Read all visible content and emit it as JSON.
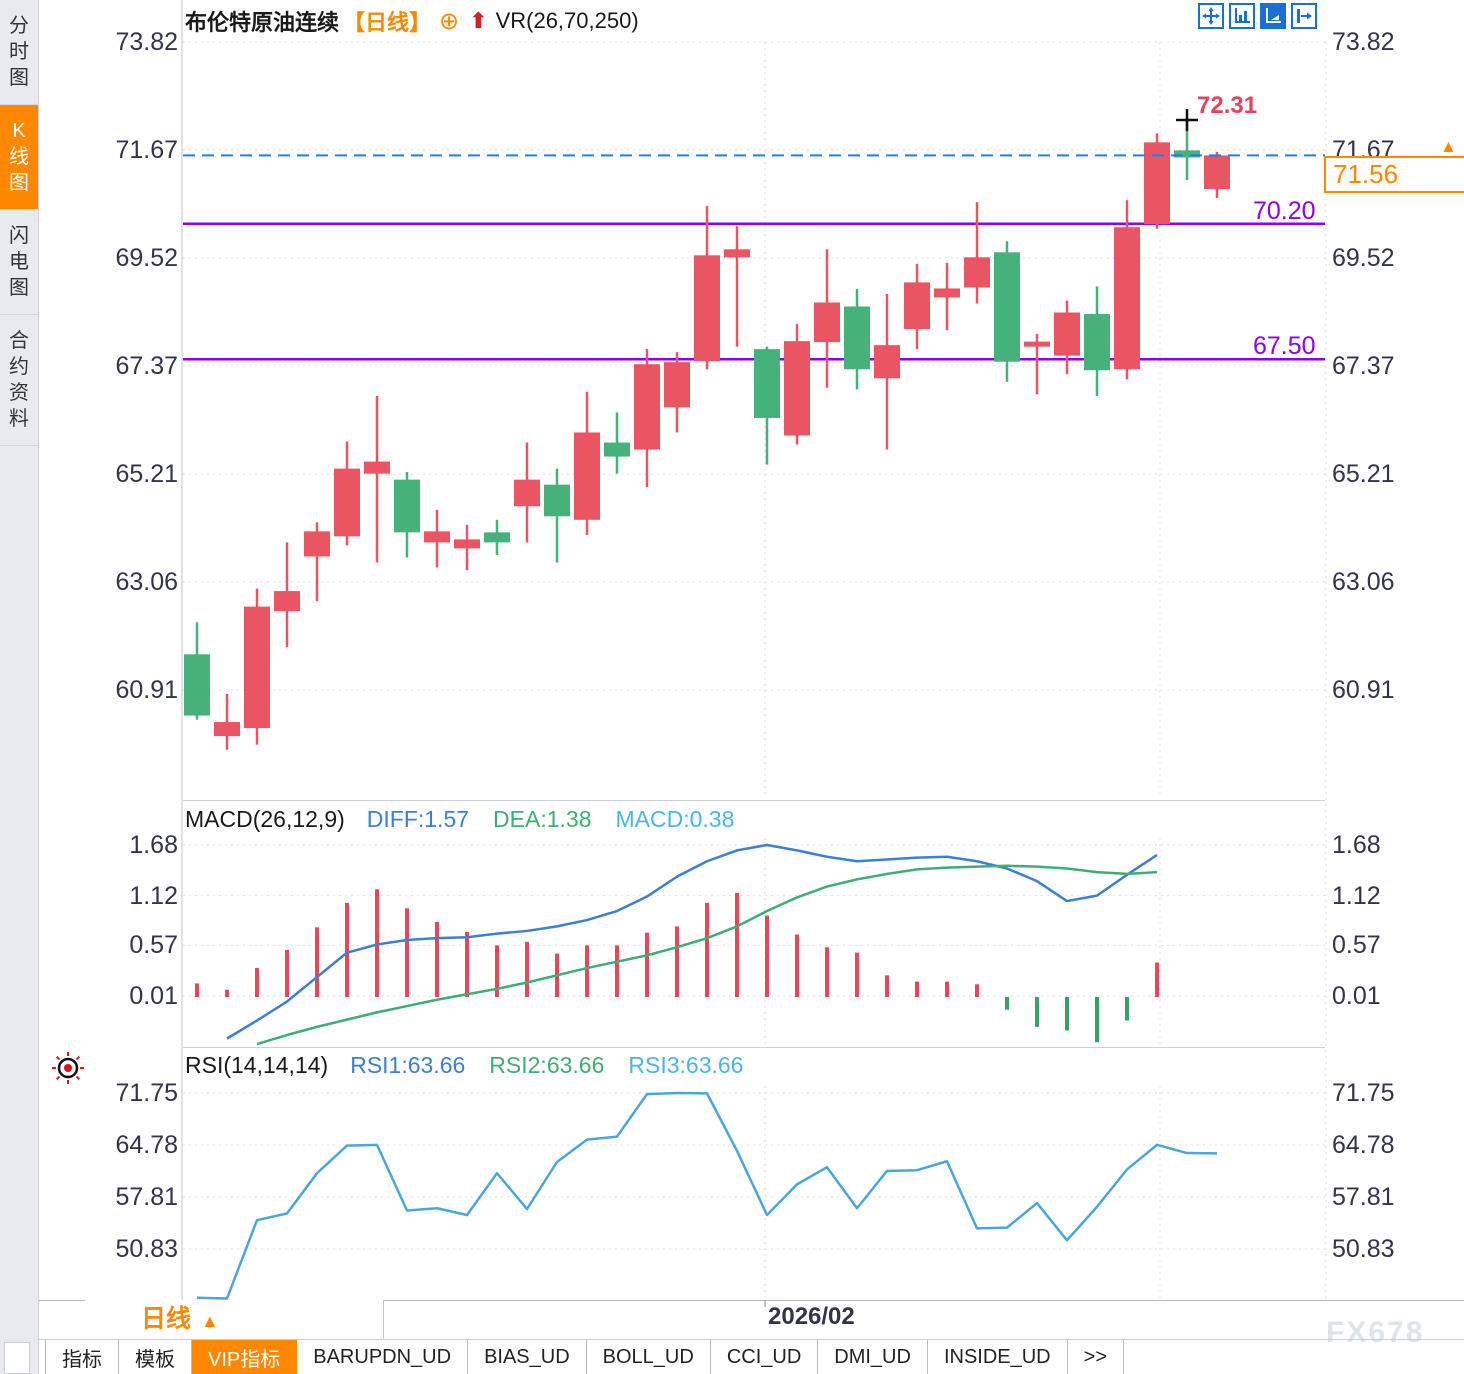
{
  "header": {
    "title": "布伦特原油连续",
    "period_tag": "【日线】",
    "vr_indicator": "VR(26,70,250)"
  },
  "icons": {
    "plus_circle": "⊕",
    "up_arrow": "⬆",
    "dropdown": "▲",
    "axis_marker": "▲"
  },
  "sidebar": {
    "items": [
      {
        "label": "分时图",
        "active": false
      },
      {
        "label": "K线图",
        "active": true
      },
      {
        "label": "闪电图",
        "active": false
      },
      {
        "label": "合约资料",
        "active": false
      }
    ]
  },
  "levels": {
    "resistance": "70.20",
    "support": "67.50",
    "last_price": "71.56",
    "high_label": "72.31"
  },
  "macd_panel": {
    "title": "MACD(26,12,9)",
    "diff_label": "DIFF:1.57",
    "dea_label": "DEA:1.38",
    "macd_label": "MACD:0.38"
  },
  "rsi_panel": {
    "title": "RSI(14,14,14)",
    "rsi1_label": "RSI1:63.66",
    "rsi2_label": "RSI2:63.66",
    "rsi3_label": "RSI3:63.66"
  },
  "xaxis": {
    "date_label": "2026/02"
  },
  "bottom": {
    "period_label": "日线",
    "tabs": [
      {
        "label": "指标",
        "active": false
      },
      {
        "label": "模板",
        "active": false
      },
      {
        "label": "VIP指标",
        "active": true
      },
      {
        "label": "BARUPDN_UD",
        "active": false
      },
      {
        "label": "BIAS_UD",
        "active": false
      },
      {
        "label": "BOLL_UD",
        "active": false
      },
      {
        "label": "CCI_UD",
        "active": false
      },
      {
        "label": "DMI_UD",
        "active": false
      },
      {
        "label": "INSIDE_UD",
        "active": false
      },
      {
        "label": ">>",
        "active": false
      }
    ],
    "watermark": "FX678"
  },
  "colors": {
    "up": "#ea5564",
    "down": "#47b17c",
    "level_line": "#8b00ff",
    "current_price_line": "#1e7ff0",
    "accent": "#ff8800",
    "diff_line": "#3b7fd9",
    "dea_line": "#3fae75",
    "hist_up": "#e8475a",
    "hist_down": "#35a368",
    "rsi_line": "#4ba6dc",
    "grid": "#dcdee5",
    "axis_text": "#33334a"
  },
  "chart_data": [
    {
      "type": "candlestick",
      "title": "布伦特原油连续 日线",
      "yticks": [
        "73.82",
        "71.67",
        "69.52",
        "67.37",
        "65.21",
        "63.06",
        "60.91"
      ],
      "ylim": [
        59.5,
        74.2
      ],
      "levels": [
        {
          "value": 70.2,
          "label": "70.20"
        },
        {
          "value": 67.5,
          "label": "67.50"
        }
      ],
      "current_price": 71.56,
      "annotated_high": 72.31,
      "x_date_label": "2026/02",
      "candles": [
        {
          "o": 61.62,
          "h": 62.26,
          "l": 60.32,
          "c": 60.4
        },
        {
          "o": 59.99,
          "h": 60.83,
          "l": 59.72,
          "c": 60.27
        },
        {
          "o": 60.15,
          "h": 62.93,
          "l": 59.82,
          "c": 62.57
        },
        {
          "o": 62.48,
          "h": 63.85,
          "l": 61.76,
          "c": 62.88
        },
        {
          "o": 63.57,
          "h": 64.25,
          "l": 62.68,
          "c": 64.07
        },
        {
          "o": 63.97,
          "h": 65.86,
          "l": 63.79,
          "c": 65.32
        },
        {
          "o": 65.22,
          "h": 66.77,
          "l": 63.45,
          "c": 65.46
        },
        {
          "o": 65.1,
          "h": 65.25,
          "l": 63.55,
          "c": 64.05
        },
        {
          "o": 63.85,
          "h": 64.5,
          "l": 63.35,
          "c": 64.07
        },
        {
          "o": 63.73,
          "h": 64.2,
          "l": 63.3,
          "c": 63.91
        },
        {
          "o": 64.05,
          "h": 64.3,
          "l": 63.6,
          "c": 63.85
        },
        {
          "o": 64.57,
          "h": 65.84,
          "l": 63.85,
          "c": 65.1
        },
        {
          "o": 65.0,
          "h": 65.32,
          "l": 63.45,
          "c": 64.37
        },
        {
          "o": 64.3,
          "h": 66.85,
          "l": 64.0,
          "c": 66.04
        },
        {
          "o": 65.84,
          "h": 66.44,
          "l": 65.22,
          "c": 65.56
        },
        {
          "o": 65.7,
          "h": 67.7,
          "l": 64.95,
          "c": 67.4
        },
        {
          "o": 66.54,
          "h": 67.64,
          "l": 66.04,
          "c": 67.44
        },
        {
          "o": 67.46,
          "h": 70.55,
          "l": 67.3,
          "c": 69.57
        },
        {
          "o": 69.53,
          "h": 70.15,
          "l": 67.75,
          "c": 69.69
        },
        {
          "o": 67.7,
          "h": 67.75,
          "l": 65.4,
          "c": 66.33
        },
        {
          "o": 65.98,
          "h": 68.2,
          "l": 65.8,
          "c": 67.86
        },
        {
          "o": 67.84,
          "h": 69.69,
          "l": 66.93,
          "c": 68.63
        },
        {
          "o": 68.55,
          "h": 68.9,
          "l": 66.9,
          "c": 67.3
        },
        {
          "o": 67.12,
          "h": 68.8,
          "l": 65.7,
          "c": 67.78
        },
        {
          "o": 68.1,
          "h": 69.4,
          "l": 67.7,
          "c": 69.03
        },
        {
          "o": 68.73,
          "h": 69.42,
          "l": 68.08,
          "c": 68.91
        },
        {
          "o": 68.93,
          "h": 70.63,
          "l": 68.61,
          "c": 69.53
        },
        {
          "o": 69.63,
          "h": 69.85,
          "l": 67.05,
          "c": 67.45
        },
        {
          "o": 67.75,
          "h": 68.0,
          "l": 66.8,
          "c": 67.85
        },
        {
          "o": 67.57,
          "h": 68.67,
          "l": 67.2,
          "c": 68.43
        },
        {
          "o": 68.4,
          "h": 68.95,
          "l": 66.77,
          "c": 67.28
        },
        {
          "o": 67.3,
          "h": 70.67,
          "l": 67.1,
          "c": 70.13
        },
        {
          "o": 70.19,
          "h": 72.0,
          "l": 70.1,
          "c": 71.82
        },
        {
          "o": 71.66,
          "h": 72.31,
          "l": 71.07,
          "c": 71.52
        },
        {
          "o": 70.89,
          "h": 71.63,
          "l": 70.71,
          "c": 71.56
        }
      ]
    },
    {
      "type": "bar+line",
      "name": "MACD",
      "yticks": [
        "1.68",
        "1.12",
        "0.57",
        "0.01"
      ],
      "series": [
        {
          "name": "DIFF",
          "last": 1.57,
          "values": [
            null,
            -0.46,
            -0.26,
            -0.05,
            0.22,
            0.49,
            0.58,
            0.63,
            0.65,
            0.66,
            0.7,
            0.73,
            0.78,
            0.85,
            0.95,
            1.11,
            1.33,
            1.5,
            1.62,
            1.68,
            1.62,
            1.55,
            1.5,
            1.52,
            1.54,
            1.55,
            1.5,
            1.42,
            1.28,
            1.06,
            1.12,
            1.35,
            1.57,
            null,
            null
          ]
        },
        {
          "name": "DEA",
          "last": 1.38,
          "values": [
            null,
            null,
            -0.52,
            -0.42,
            -0.33,
            -0.25,
            -0.17,
            -0.1,
            -0.03,
            0.03,
            0.09,
            0.16,
            0.24,
            0.32,
            0.39,
            0.46,
            0.55,
            0.65,
            0.78,
            0.95,
            1.1,
            1.22,
            1.3,
            1.36,
            1.41,
            1.43,
            1.44,
            1.45,
            1.44,
            1.42,
            1.38,
            1.36,
            1.38,
            null,
            null
          ]
        },
        {
          "name": "MACD_hist",
          "last": 0.38,
          "values": [
            0.15,
            0.08,
            0.32,
            0.52,
            0.77,
            1.04,
            1.19,
            0.98,
            0.83,
            0.72,
            0.57,
            0.61,
            0.48,
            0.57,
            0.57,
            0.71,
            0.78,
            1.04,
            1.15,
            0.9,
            0.69,
            0.55,
            0.49,
            0.24,
            0.17,
            0.17,
            0.14,
            -0.14,
            -0.33,
            -0.37,
            -0.5,
            -0.26,
            0.38,
            null,
            null
          ]
        }
      ]
    },
    {
      "type": "line",
      "name": "RSI",
      "yticks": [
        "71.75",
        "64.78",
        "57.81",
        "50.83"
      ],
      "series": [
        {
          "name": "RSI1",
          "last": 63.66,
          "values": [
            44.3,
            44.2,
            54.7,
            55.6,
            61.0,
            64.7,
            64.8,
            56.0,
            56.3,
            55.4,
            61.0,
            56.2,
            62.5,
            65.5,
            65.9,
            71.6,
            71.75,
            71.7,
            64.0,
            55.4,
            59.5,
            61.8,
            56.3,
            61.3,
            61.4,
            62.6,
            53.6,
            53.7,
            57.0,
            52.0,
            56.5,
            61.5,
            64.8,
            63.7,
            63.66
          ]
        }
      ]
    }
  ]
}
